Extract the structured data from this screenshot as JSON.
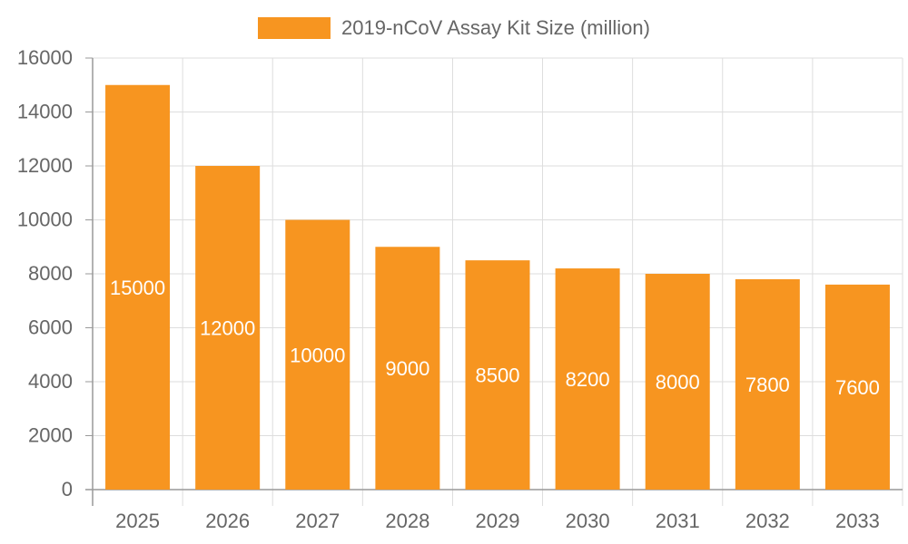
{
  "chart_data": {
    "type": "bar",
    "categories": [
      "2025",
      "2026",
      "2027",
      "2028",
      "2029",
      "2030",
      "2031",
      "2032",
      "2033"
    ],
    "series": [
      {
        "name": "2019-nCoV Assay Kit Size (million)",
        "values": [
          15000,
          12000,
          10000,
          9000,
          8500,
          8200,
          8000,
          7800,
          7600
        ],
        "color": "#f79520"
      }
    ],
    "title": "",
    "xlabel": "",
    "ylabel": "",
    "ylim": [
      0,
      16000
    ],
    "yticks": [
      "0",
      "2000",
      "4000",
      "6000",
      "8000",
      "10000",
      "12000",
      "14000",
      "16000"
    ],
    "grid": true,
    "legend": "top-center",
    "data_labels": true,
    "data_label_color": "#ffffff",
    "grid_color": "#dddddd",
    "axis_color": "#999999",
    "tick_label_color": "#666666"
  }
}
